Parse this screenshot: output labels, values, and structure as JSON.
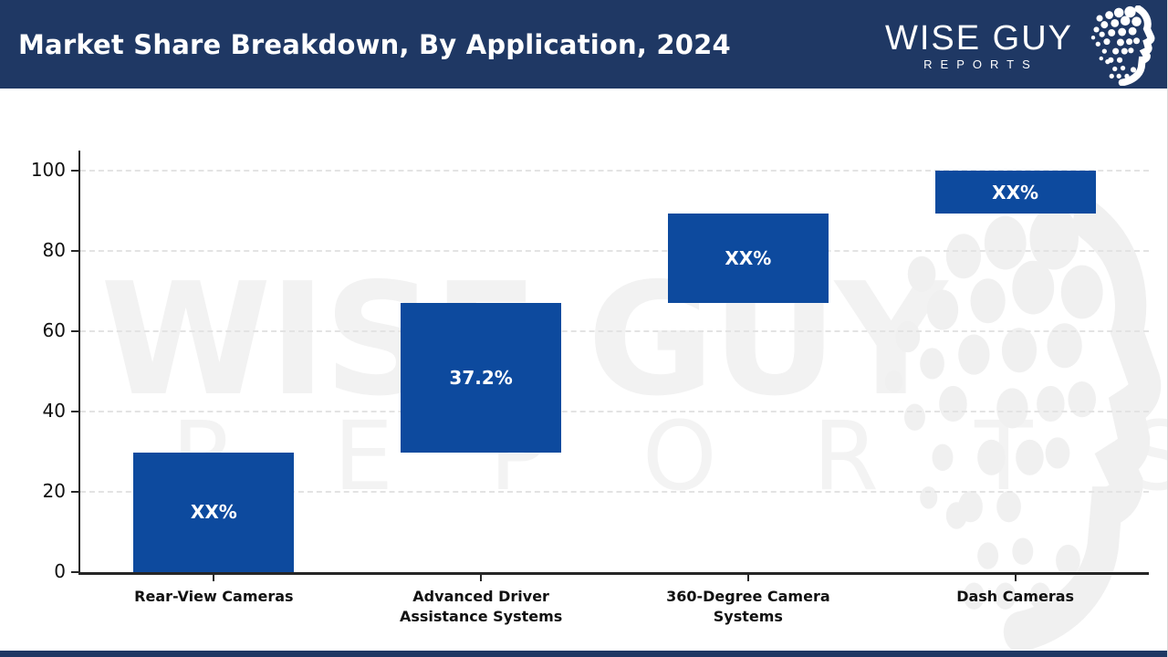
{
  "header": {
    "title": "Market Share Breakdown, By Application, 2024",
    "logo": {
      "line1": "WISE GUY",
      "line2": "REPORTS"
    }
  },
  "watermark": {
    "line1": "WISE GUY",
    "line2": "R E P O R T S"
  },
  "chart_data": {
    "type": "bar",
    "subtype": "waterfall",
    "title": "Market Share Breakdown, By Application, 2024",
    "categories": [
      "Rear-View Cameras",
      "Advanced Driver\nAssistance Systems",
      "360-Degree Camera\nSystems",
      "Dash Cameras"
    ],
    "series": [
      {
        "category": "Rear-View Cameras",
        "start": 0,
        "end": 29.8,
        "value_label": "XX%"
      },
      {
        "category": "Advanced Driver Assistance Systems",
        "start": 29.8,
        "end": 67.0,
        "value": 37.2,
        "value_label": "37.2%"
      },
      {
        "category": "360-Degree Camera Systems",
        "start": 67.0,
        "end": 89.3,
        "value_label": "XX%"
      },
      {
        "category": "Dash Cameras",
        "start": 89.3,
        "end": 100,
        "value_label": "XX%"
      }
    ],
    "ylabel": "",
    "xlabel": "",
    "yticks": [
      0,
      20,
      40,
      60,
      80,
      100
    ],
    "ylim": [
      0,
      105
    ],
    "grid": {
      "horizontal": true,
      "style": "dashed"
    },
    "legend": "none",
    "colors": {
      "bar": "#0d4a9e",
      "bar_label": "#ffffff",
      "axis": "#262626",
      "grid": "#e3e3e3",
      "header_bg": "#1f3864",
      "footer_bg": "#1f3864",
      "watermark": "#f2f2f2"
    }
  }
}
